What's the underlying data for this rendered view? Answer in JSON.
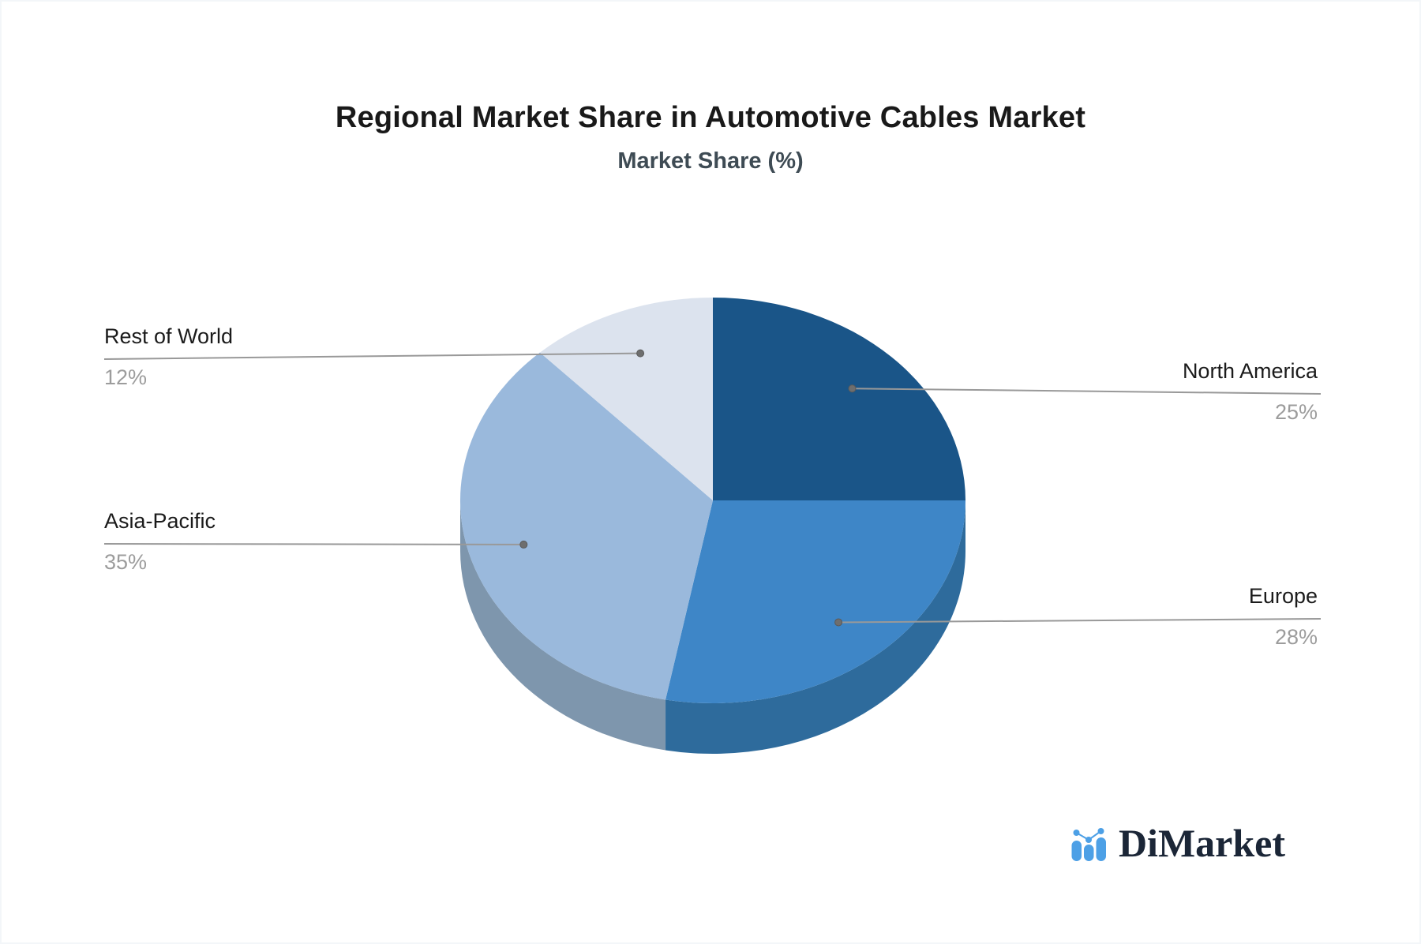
{
  "page": {
    "title": "Regional Market Share in Automotive Cables Market",
    "subtitle": "Market Share (%)"
  },
  "logo": {
    "text": "DiMarket",
    "icon": "bar-chart-logo-icon",
    "brand_blue": "#4da0e6",
    "text_color": "#1b2637"
  },
  "chart_data": {
    "type": "pie",
    "style": "3d-pie",
    "title": "Regional Market Share in Automotive Cables Market",
    "subtitle": "Market Share (%)",
    "unit": "%",
    "total": 100,
    "order": "clockwise-from-12-o-clock",
    "slices": [
      {
        "id": "north-america",
        "label": "North America",
        "value": 25,
        "pct_text": "25%",
        "color": "#1a5588",
        "side_color": "#144368",
        "label_side": "right"
      },
      {
        "id": "europe",
        "label": "Europe",
        "value": 28,
        "pct_text": "28%",
        "color": "#3e86c7",
        "side_color": "#2e6b9c",
        "label_side": "right"
      },
      {
        "id": "asia-pacific",
        "label": "Asia-Pacific",
        "value": 35,
        "pct_text": "35%",
        "color": "#9ab9dc",
        "side_color": "#7e96ad",
        "label_side": "left"
      },
      {
        "id": "rest-of-world",
        "label": "Rest of World",
        "value": 12,
        "pct_text": "12%",
        "color": "#dce3ee",
        "side_color": "#b9c4d4",
        "label_side": "left"
      }
    ],
    "colors": {
      "connector_line": "#999999",
      "connector_dot": "#6e6e6e",
      "label_text": "#1b1b1b",
      "pct_text": "#9c9c9c",
      "title_text": "#191919",
      "subtitle_text": "#3e4b54",
      "background": "#ffffff"
    },
    "legend": "none",
    "grid": "off"
  }
}
